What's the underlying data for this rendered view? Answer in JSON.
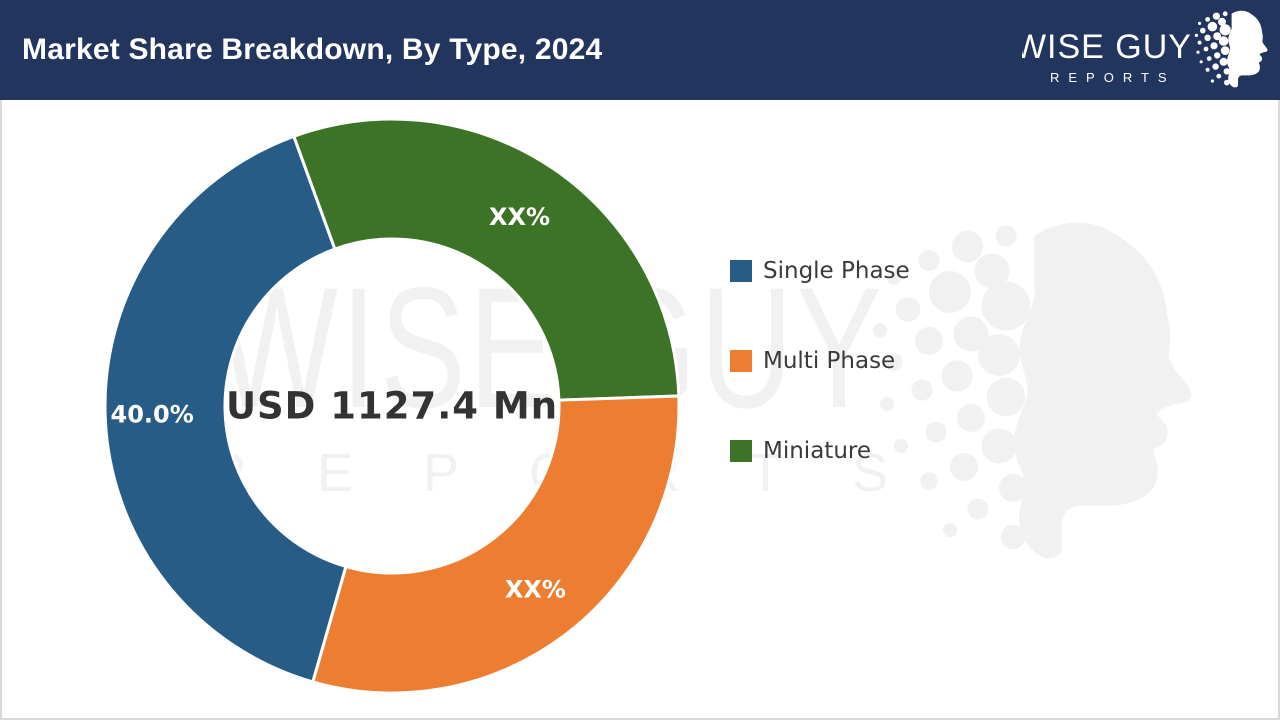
{
  "header": {
    "title": "Market Share Breakdown, By Type, 2024"
  },
  "logo": {
    "name": "WISE GUY",
    "subtitle": "REPORTS"
  },
  "watermark": {
    "name": "WISE GUY",
    "subtitle": "REPORTS"
  },
  "chart_data": {
    "type": "pie",
    "subtype": "donut",
    "title": "Market Share Breakdown, By Type, 2024",
    "center_label": "USD 1127.4 Mn",
    "legend_position": "right",
    "hole_ratio": 0.582,
    "start_angle_deg": 196,
    "draw_order": [
      0,
      2,
      1
    ],
    "slices": [
      {
        "label": "Single Phase",
        "value": 40.0,
        "display": "40.0%",
        "color": "#265c85",
        "label_radius": 240
      },
      {
        "label": "Multi Phase",
        "value": 30.0,
        "display": "XX%",
        "color": "#ed7d31",
        "label_radius": 233
      },
      {
        "label": "Miniature",
        "value": 30.0,
        "display": "XX%",
        "color": "#3d7326",
        "label_radius": 228
      }
    ]
  },
  "colors": {
    "header_bg": "#22355e",
    "slice_border": "#ffffff",
    "center_text": "#333333",
    "legend_text": "#3a3a3a",
    "watermark": "#f1f1f1",
    "frame_border": "#d9d9d9"
  }
}
